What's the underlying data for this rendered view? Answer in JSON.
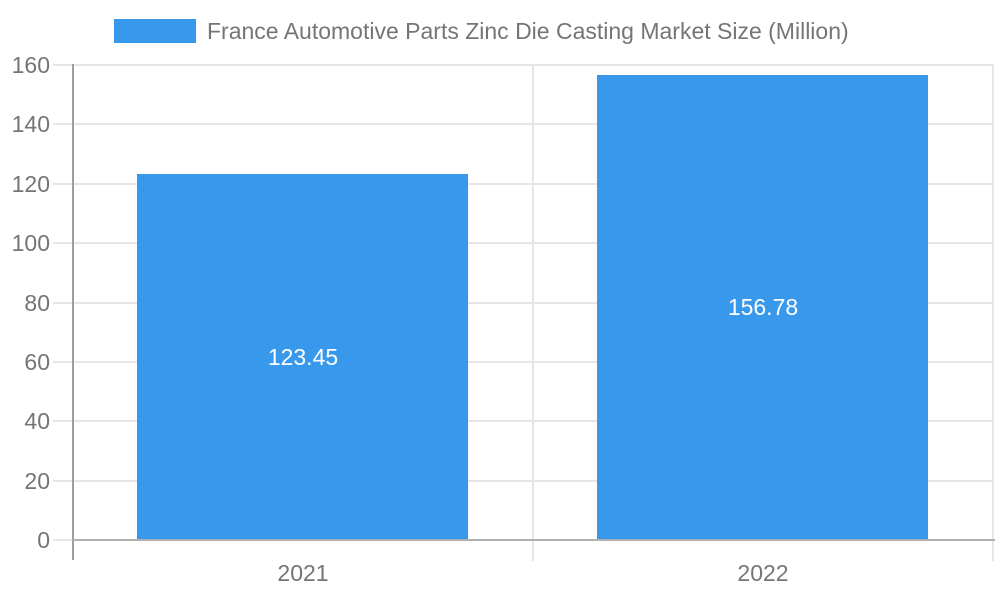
{
  "legend": {
    "position": "top",
    "label": "France Automotive Parts Zinc Die Casting Market Size (Million)"
  },
  "chart_data": {
    "type": "bar",
    "title": "France Automotive Parts Zinc Die Casting Market Size (Million)",
    "categories": [
      "2021",
      "2022"
    ],
    "values": [
      123.45,
      156.78
    ],
    "value_labels": [
      "123.45",
      "156.78"
    ],
    "xlabel": "",
    "ylabel": "",
    "ylim": [
      0,
      160
    ],
    "yticks": [
      0,
      20,
      40,
      60,
      80,
      100,
      120,
      140,
      160
    ],
    "grid": true,
    "legend_position": "top",
    "colors": {
      "bar": "#3899EC",
      "value_label_text": "#ffffff",
      "axis_text": "#757575",
      "gridline": "#e6e6e6",
      "axis_line_left": "#9e9e9e",
      "axis_line_bottom": "#b0b0b0",
      "background": "#ffffff"
    }
  }
}
